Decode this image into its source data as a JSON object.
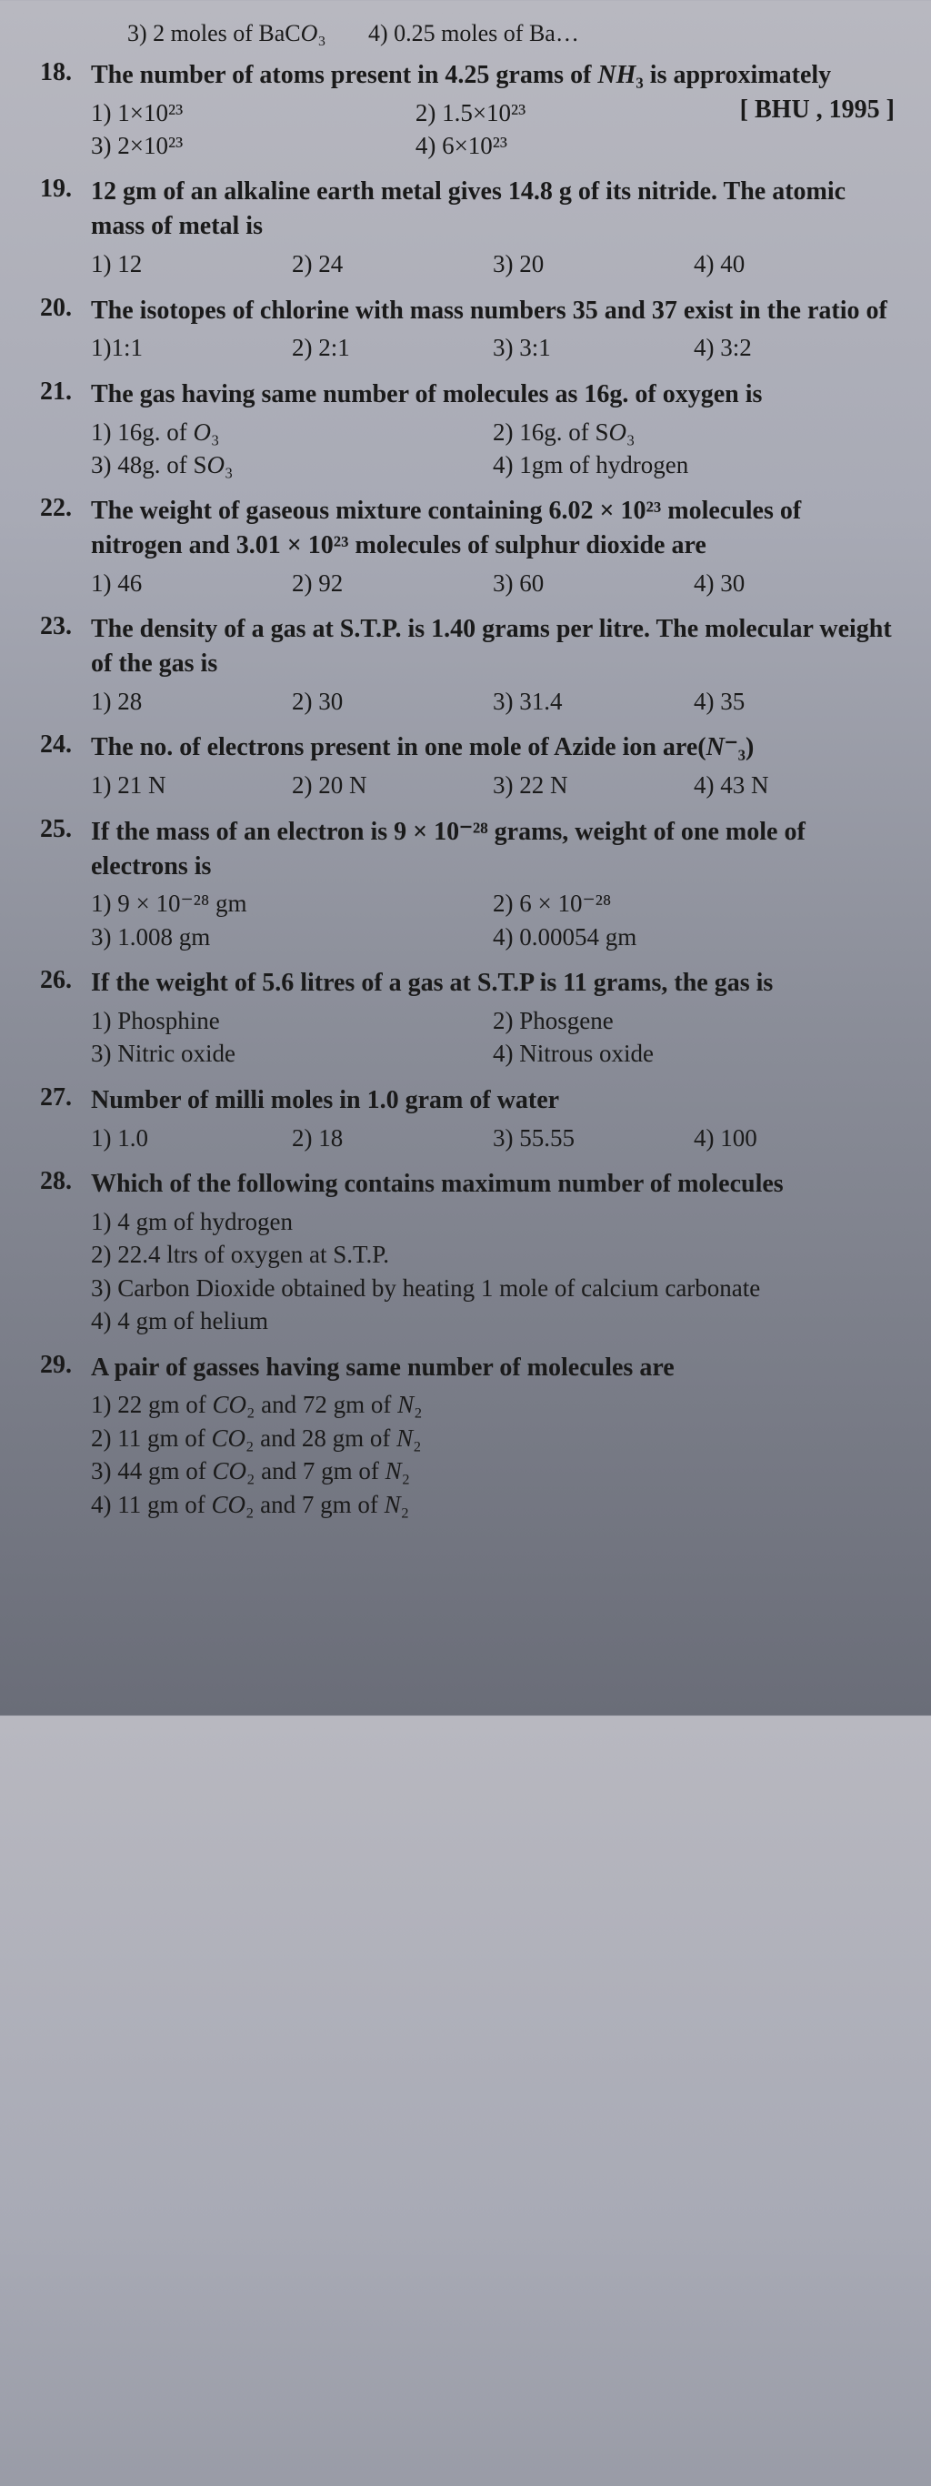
{
  "partial_top": {
    "opt3": "3) 2 moles of BaCO₃",
    "opt4": "4) 0.25 moles of Ba…"
  },
  "questions": [
    {
      "num": "18.",
      "text": "The number of atoms present in 4.25 grams of NH₃ is approximately",
      "ref": "[ BHU , 1995 ]",
      "options": [
        {
          "label": "1) 1×10²³",
          "w": "w50"
        },
        {
          "label": "2) 1.5×10²³",
          "w": "w50"
        },
        {
          "label": "3) 2×10²³",
          "w": "w50"
        },
        {
          "label": "4) 6×10²³",
          "w": "w50"
        }
      ]
    },
    {
      "num": "19.",
      "text": "12 gm of an alkaline earth metal gives 14.8 g of its nitride. The atomic mass of metal is",
      "options": [
        {
          "label": "1) 12",
          "w": "w25"
        },
        {
          "label": "2) 24",
          "w": "w25"
        },
        {
          "label": "3) 20",
          "w": "w25"
        },
        {
          "label": "4) 40",
          "w": "w25"
        }
      ]
    },
    {
      "num": "20.",
      "text": "The isotopes of chlorine with mass numbers 35 and 37 exist in the ratio of",
      "options": [
        {
          "label": "1)1:1",
          "w": "w25"
        },
        {
          "label": "2) 2:1",
          "w": "w25"
        },
        {
          "label": "3) 3:1",
          "w": "w25"
        },
        {
          "label": "4) 3:2",
          "w": "w25"
        }
      ]
    },
    {
      "num": "21.",
      "text": "The gas having same number of molecules as 16g. of oxygen is",
      "options": [
        {
          "label": "1) 16g. of O₃",
          "w": "w50"
        },
        {
          "label": "2) 16g. of SO₃",
          "w": "w50"
        },
        {
          "label": "3) 48g. of SO₃",
          "w": "w50"
        },
        {
          "label": "4) 1gm of hydrogen",
          "w": "w50"
        }
      ]
    },
    {
      "num": "22.",
      "text": "The weight of gaseous mixture containing 6.02 × 10²³ molecules of nitrogen and 3.01 × 10²³ molecules of sulphur dioxide are",
      "options": [
        {
          "label": "1) 46",
          "w": "w25"
        },
        {
          "label": "2) 92",
          "w": "w25"
        },
        {
          "label": "3) 60",
          "w": "w25"
        },
        {
          "label": "4) 30",
          "w": "w25"
        }
      ]
    },
    {
      "num": "23.",
      "text": "The density of a gas at S.T.P. is 1.40 grams per litre. The molecular weight of the gas is",
      "options": [
        {
          "label": "1) 28",
          "w": "w25"
        },
        {
          "label": "2) 30",
          "w": "w25"
        },
        {
          "label": "3) 31.4",
          "w": "w25"
        },
        {
          "label": "4) 35",
          "w": "w25"
        }
      ]
    },
    {
      "num": "24.",
      "text": "The no. of electrons present in one mole of Azide ion are(N⁻₃)",
      "options": [
        {
          "label": "1) 21 N",
          "w": "w25"
        },
        {
          "label": "2) 20 N",
          "w": "w25"
        },
        {
          "label": "3) 22 N",
          "w": "w25"
        },
        {
          "label": "4) 43 N",
          "w": "w25"
        }
      ]
    },
    {
      "num": "25.",
      "text": "If the mass of an electron is 9 × 10⁻²⁸ grams, weight of one mole of electrons is",
      "options": [
        {
          "label": "1) 9 × 10⁻²⁸ gm",
          "w": "w50"
        },
        {
          "label": "2) 6 × 10⁻²⁸",
          "w": "w50"
        },
        {
          "label": "3) 1.008 gm",
          "w": "w50"
        },
        {
          "label": "4) 0.00054 gm",
          "w": "w50"
        }
      ]
    },
    {
      "num": "26.",
      "text": "If the weight of 5.6 litres of a gas at S.T.P is 11 grams, the gas is",
      "options": [
        {
          "label": "1) Phosphine",
          "w": "w50"
        },
        {
          "label": "2) Phosgene",
          "w": "w50"
        },
        {
          "label": "3) Nitric oxide",
          "w": "w50"
        },
        {
          "label": "4) Nitrous oxide",
          "w": "w50"
        }
      ]
    },
    {
      "num": "27.",
      "text": "Number of milli moles in 1.0 gram of water",
      "options": [
        {
          "label": "1) 1.0",
          "w": "w25"
        },
        {
          "label": "2) 18",
          "w": "w25"
        },
        {
          "label": "3) 55.55",
          "w": "w25"
        },
        {
          "label": "4) 100",
          "w": "w25"
        }
      ]
    },
    {
      "num": "28.",
      "text": "Which of the following contains maximum number of molecules",
      "options": [
        {
          "label": "1) 4 gm of hydrogen",
          "w": "w100"
        },
        {
          "label": "2) 22.4 ltrs of oxygen at S.T.P.",
          "w": "w100"
        },
        {
          "label": "3) Carbon Dioxide obtained by heating 1 mole of calcium carbonate",
          "w": "w100"
        },
        {
          "label": "4) 4 gm of helium",
          "w": "w100"
        }
      ]
    },
    {
      "num": "29.",
      "text": "A pair of gasses having same number of molecules are",
      "options": [
        {
          "label": "1) 22 gm of CO₂ and 72 gm of N₂",
          "w": "w100"
        },
        {
          "label": "2) 11 gm of CO₂ and 28 gm of N₂",
          "w": "w100"
        },
        {
          "label": "3) 44 gm of CO₂ and 7 gm of N₂",
          "w": "w100"
        },
        {
          "label": "4) 11 gm of CO₂ and 7 gm of N₂",
          "w": "w100"
        }
      ]
    }
  ]
}
